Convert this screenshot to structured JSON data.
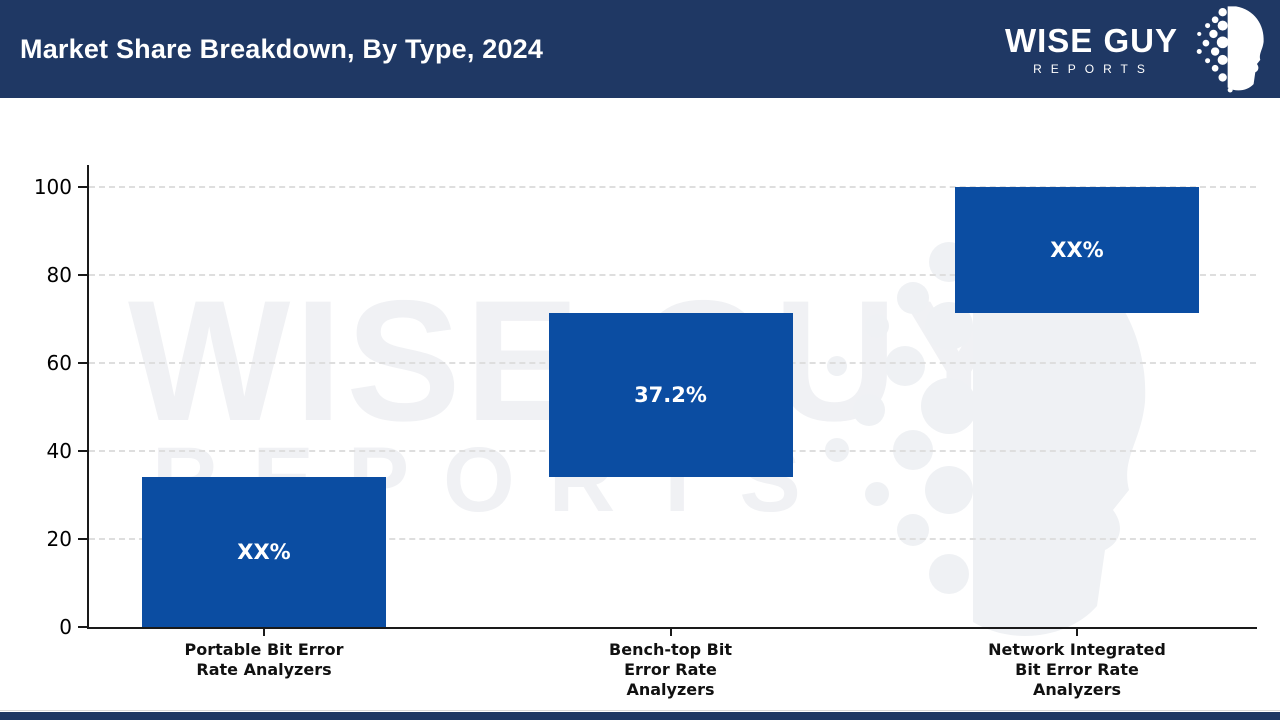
{
  "header": {
    "title": "Market Share Breakdown, By Type, 2024",
    "logo": {
      "line1": "WISE GUY",
      "line2": "REPORTS"
    },
    "bg_color": "#1f3864",
    "text_color": "#ffffff"
  },
  "watermark": {
    "line1": "WISE GUY",
    "line2": "REPORTS"
  },
  "chart_data": {
    "type": "bar",
    "subtype": "cumulative-waterfall",
    "title": "Market Share Breakdown, By Type, 2024",
    "categories": [
      {
        "lines": [
          "Portable Bit Error",
          "Rate Analyzers"
        ]
      },
      {
        "lines": [
          "Bench-top Bit",
          "Error Rate",
          "Analyzers"
        ]
      },
      {
        "lines": [
          "Network Integrated",
          "Bit Error Rate",
          "Analyzers"
        ]
      }
    ],
    "segments": [
      {
        "label": "XX%",
        "start": 0,
        "value": 34.1
      },
      {
        "label": "37.2%",
        "start": 34.1,
        "value": 37.2
      },
      {
        "label": "XX%",
        "start": 71.3,
        "value": 28.7
      }
    ],
    "values": [
      34.1,
      37.2,
      28.7
    ],
    "xlabel": "",
    "ylabel": "",
    "ylim": [
      0,
      100
    ],
    "yticks": [
      0,
      20,
      40,
      60,
      80,
      100
    ],
    "grid": "dashed-horizontal",
    "legend": "none",
    "bar_color": "#0b4da2",
    "bar_label_color": "#ffffff",
    "axis_color": "#1a1a1a"
  },
  "footer": {
    "bar_color": "#1f3864"
  }
}
